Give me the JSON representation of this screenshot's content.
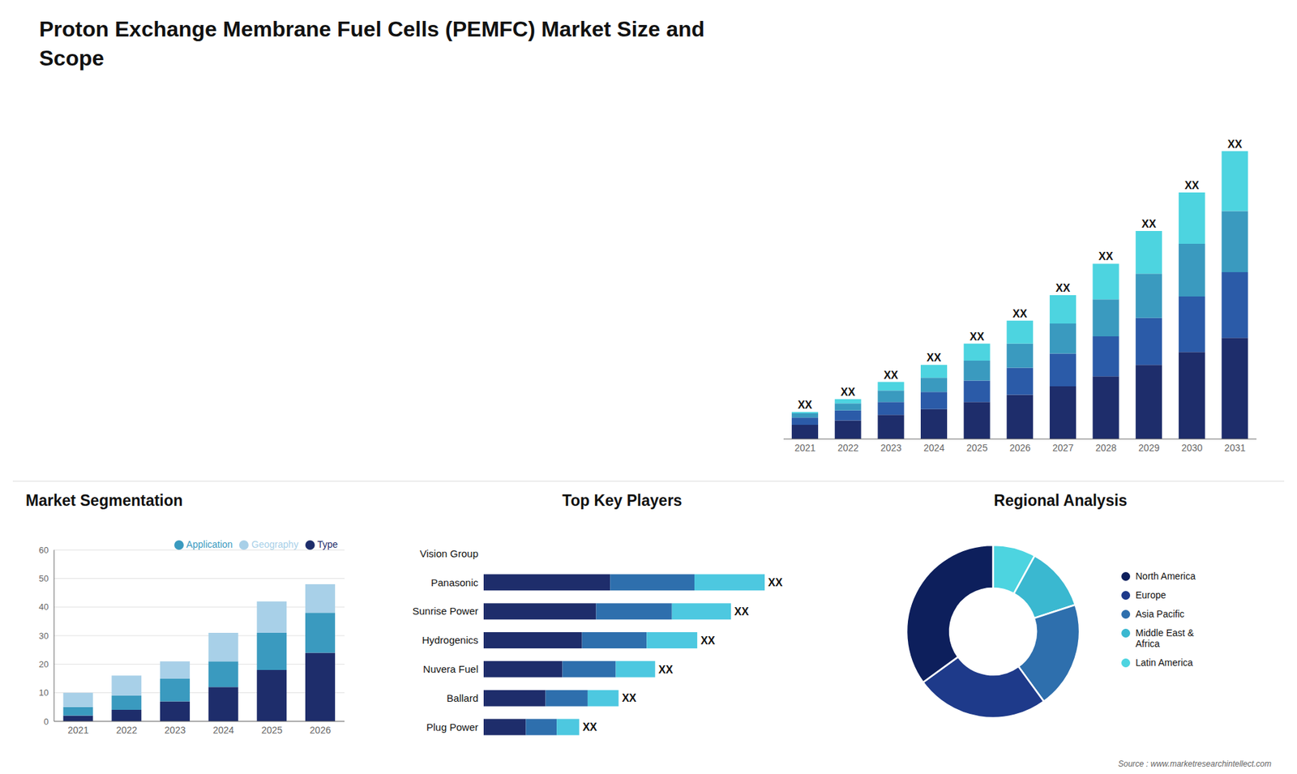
{
  "title": "Proton Exchange Membrane Fuel Cells (PEMFC) Market Size and\nScope",
  "source": "Source : www.marketresearchintellect.com",
  "chart_data": [
    {
      "type": "bar",
      "stacked": true,
      "categories": [
        "2021",
        "2022",
        "2023",
        "2024",
        "2025",
        "2026",
        "2027",
        "2028",
        "2029",
        "2030",
        "2031"
      ],
      "series": [
        {
          "color": "#1e2d6b",
          "values": [
            1.0,
            1.3,
            1.7,
            2.1,
            2.6,
            3.1,
            3.7,
            4.4,
            5.2,
            6.1,
            7.1
          ]
        },
        {
          "color": "#2b5ba8",
          "values": [
            0.5,
            0.7,
            0.9,
            1.2,
            1.5,
            1.9,
            2.3,
            2.8,
            3.3,
            3.9,
            4.6
          ]
        },
        {
          "color": "#3a9abf",
          "values": [
            0.3,
            0.5,
            0.8,
            1.0,
            1.4,
            1.7,
            2.1,
            2.6,
            3.1,
            3.7,
            4.3
          ]
        },
        {
          "color": "#4dd4e0",
          "values": [
            0.1,
            0.3,
            0.6,
            0.9,
            1.2,
            1.6,
            2.0,
            2.5,
            3.0,
            3.6,
            4.2
          ]
        }
      ],
      "annotations": [
        "XX",
        "XX",
        "XX",
        "XX",
        "XX",
        "XX",
        "XX",
        "XX",
        "XX",
        "XX",
        "XX"
      ],
      "ylim": [
        0,
        24.644
      ],
      "tick_labels": "x",
      "grid": false
    },
    {
      "type": "bar",
      "title": "Market Segmentation",
      "stacked": true,
      "categories": [
        "2021",
        "2022",
        "2023",
        "2024",
        "2025",
        "2026"
      ],
      "series": [
        {
          "name": "Type",
          "color": "#1e2d6b",
          "values": [
            2,
            4,
            7,
            12,
            18,
            24
          ]
        },
        {
          "name": "Application",
          "color": "#3a9abf",
          "values": [
            3,
            5,
            8,
            9,
            13,
            14
          ]
        },
        {
          "name": "Geography",
          "color": "#a8d0e8",
          "values": [
            5,
            7,
            6,
            10,
            11,
            10
          ]
        }
      ],
      "ylim": [
        0,
        60
      ],
      "yticks": [
        0,
        10,
        20,
        30,
        40,
        50,
        60
      ],
      "grid": true,
      "legend": "upper right"
    },
    {
      "type": "bar",
      "title": "Top Key Players",
      "orientation": "horizontal",
      "stacked": true,
      "categories": [
        "Vision Group",
        "Panasonic",
        "Sunrise Power",
        "Hydrogenics",
        "Nuvera Fuel",
        "Ballard",
        "Plug Power"
      ],
      "series": [
        {
          "color": "#1e2d6b",
          "values": [
            0,
            4.5,
            4.0,
            3.5,
            2.8,
            2.2,
            1.5
          ]
        },
        {
          "color": "#2e6fad",
          "values": [
            0,
            3.0,
            2.7,
            2.3,
            1.9,
            1.5,
            1.1
          ]
        },
        {
          "color": "#4dc8e0",
          "values": [
            0,
            2.5,
            2.1,
            1.8,
            1.4,
            1.1,
            0.8
          ]
        }
      ],
      "annotations": [
        null,
        "XX",
        "XX",
        "XX",
        "XX",
        "XX",
        "XX"
      ],
      "xlim": [
        0,
        12.5
      ],
      "tick_labels": "y",
      "grid": false
    },
    {
      "type": "pie",
      "title": "Regional Analysis",
      "categories": [
        "Latin America",
        "Middle East &\nAfrica",
        "Asia Pacific",
        "Europe",
        "North America"
      ],
      "values": [
        8,
        12,
        20,
        25,
        35
      ],
      "colors": [
        "#4dd4e0",
        "#3ab8d0",
        "#2e6fad",
        "#1e3a8a",
        "#0d1f5c"
      ],
      "legend": "right"
    }
  ]
}
